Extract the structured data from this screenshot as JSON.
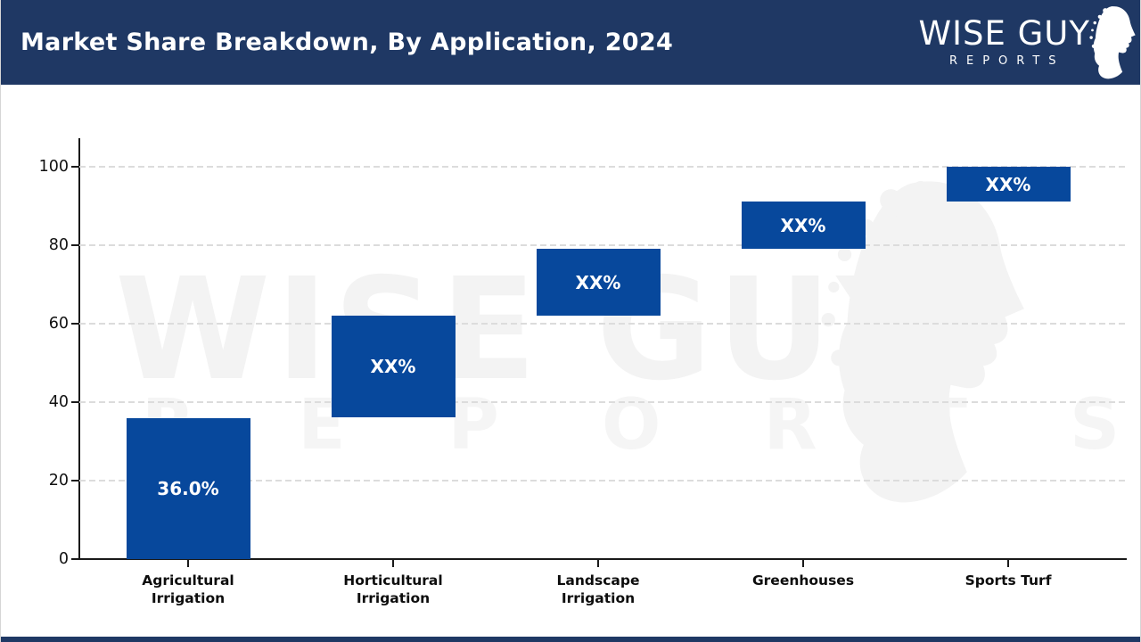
{
  "header": {
    "title": "Market Share Breakdown, By Application, 2024",
    "logo": {
      "line1": "WISE GUY",
      "line2": "REPORTS"
    }
  },
  "watermark": {
    "line1": "WISE GUY",
    "line2": "R E P O R T S"
  },
  "colors": {
    "header_bg": "#1F3864",
    "footer_bg": "#1F3864",
    "bar": "#07489C",
    "grid": "#DCDCDC",
    "axis": "#1A1A1A",
    "value_label": "#FFFFFF",
    "watermark": "#F3F3F3",
    "watermark_sub": "#F5F5F5"
  },
  "chart_data": {
    "type": "bar",
    "subtype": "waterfall",
    "title": "Market Share Breakdown, By Application, 2024",
    "categories": [
      "Agricultural Irrigation",
      "Horticultural Irrigation",
      "Landscape Irrigation",
      "Greenhouses",
      "Sports Turf"
    ],
    "segments": [
      {
        "category": "Agricultural Irrigation",
        "start": 0,
        "end": 36,
        "label": "36.0%"
      },
      {
        "category": "Horticultural Irrigation",
        "start": 36,
        "end": 62,
        "label": "XX%"
      },
      {
        "category": "Landscape Irrigation",
        "start": 62,
        "end": 79,
        "label": "XX%"
      },
      {
        "category": "Greenhouses",
        "start": 79,
        "end": 91,
        "label": "XX%"
      },
      {
        "category": "Sports Turf",
        "start": 91,
        "end": 100,
        "label": "XX%"
      }
    ],
    "yticks": [
      0,
      20,
      40,
      60,
      80,
      100
    ],
    "ylim": [
      0,
      106.8
    ],
    "ylabel": "",
    "xlabel": "",
    "grid": "horizontal-dashed",
    "legend": "none"
  }
}
